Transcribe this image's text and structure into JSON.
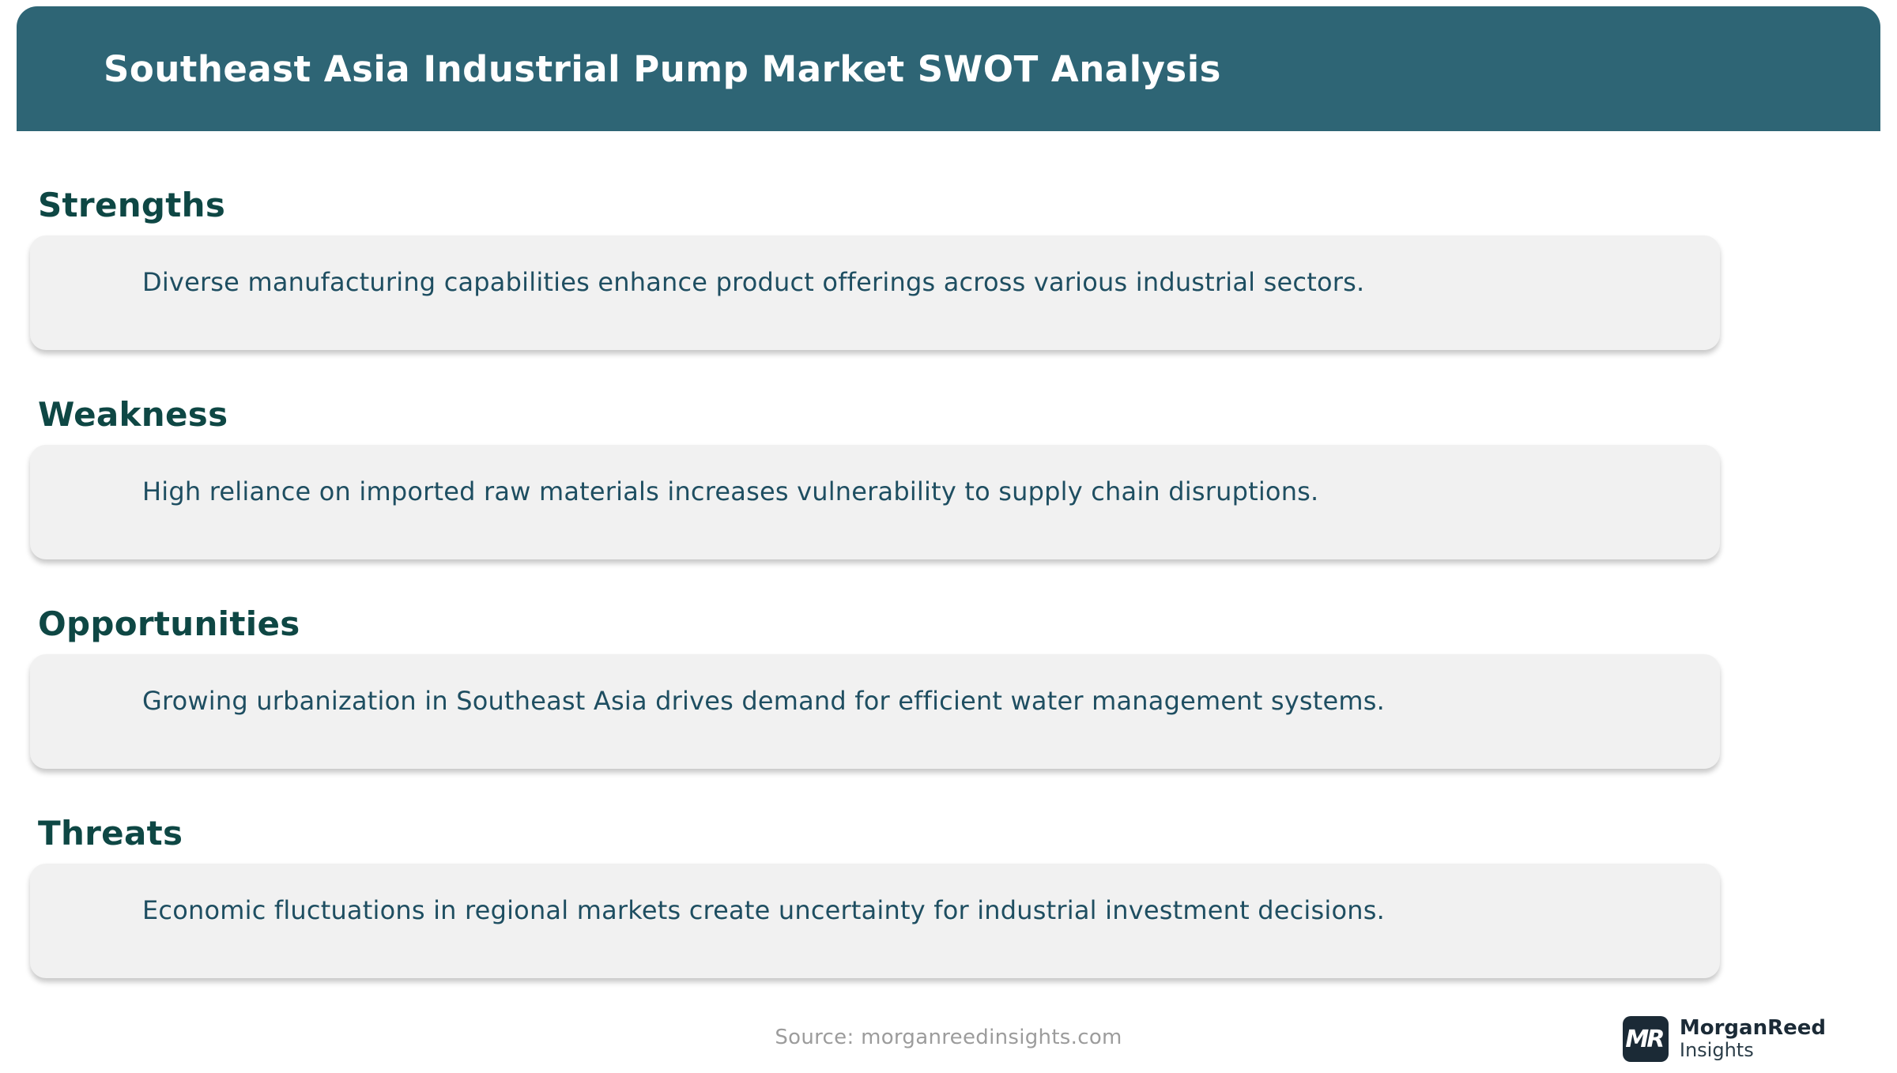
{
  "header": {
    "title": "Southeast Asia Industrial Pump Market SWOT Analysis"
  },
  "sections": [
    {
      "heading": "Strengths",
      "text": "Diverse manufacturing capabilities enhance product offerings across various industrial sectors."
    },
    {
      "heading": "Weakness",
      "text": "High reliance on imported raw materials increases vulnerability to supply chain disruptions."
    },
    {
      "heading": "Opportunities",
      "text": "Growing urbanization in Southeast Asia drives demand for efficient water management systems."
    },
    {
      "heading": "Threats",
      "text": "Economic fluctuations in regional markets create uncertainty for industrial investment decisions."
    }
  ],
  "footer": {
    "source_text": "Source: morganreedinsights.com",
    "logo": {
      "monogram": "MR",
      "name": "MorganReed",
      "tagline": "Insights"
    }
  },
  "colors": {
    "header_bg": "#2E6575",
    "heading_text": "#0E4744",
    "card_bg": "#F1F1F1",
    "card_text": "#1E4E61",
    "source_text": "#9C9C9C",
    "logo_bg": "#1B2A36",
    "title_text": "#FFFFFF"
  }
}
